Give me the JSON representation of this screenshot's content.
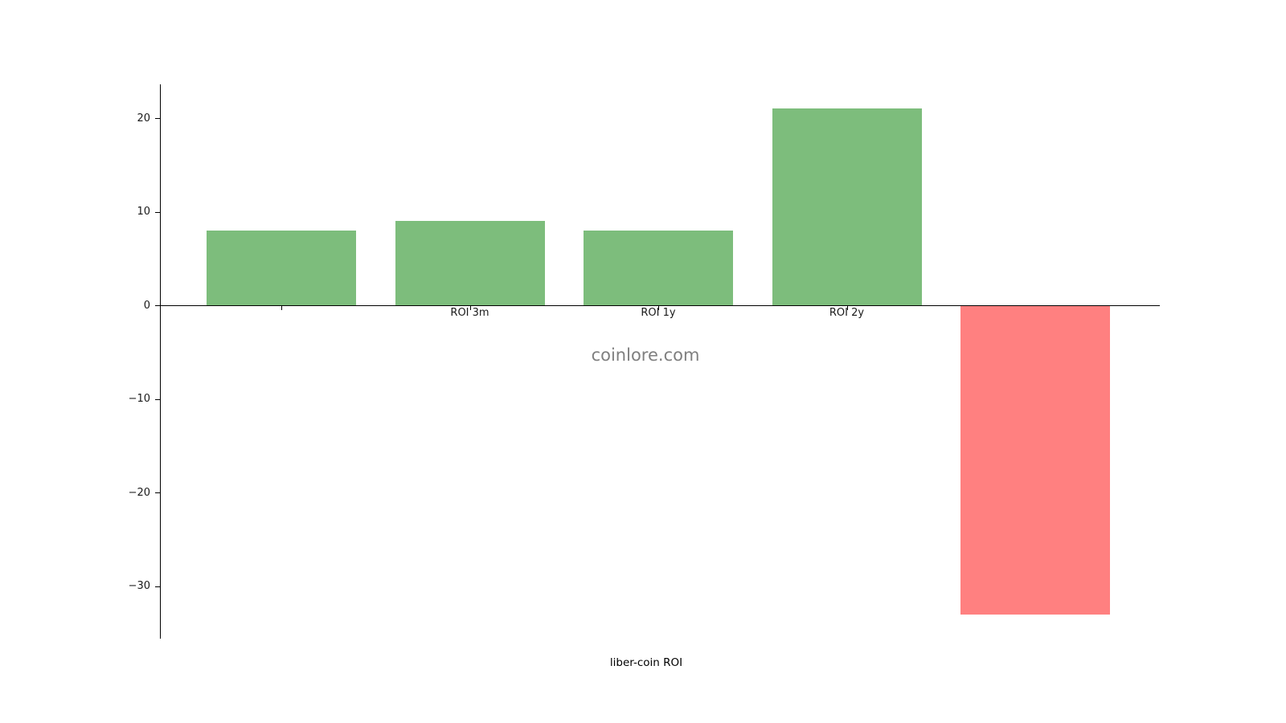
{
  "chart_data": {
    "type": "bar",
    "title": "",
    "xlabel": "liber-coin ROI",
    "ylabel": "",
    "categories": [
      "",
      "ROI 3m",
      "ROI 1y",
      "ROI 2y",
      ""
    ],
    "values": [
      8,
      9,
      8,
      21,
      -33
    ],
    "bar_colors": [
      "#7dbd7c",
      "#7dbd7c",
      "#7dbd7c",
      "#7dbd7c",
      "#ff8080"
    ],
    "positive_color": "#7dbd7c",
    "negative_color": "#ff8080",
    "y_ticks": [
      20,
      10,
      0,
      -10,
      -20,
      -30
    ],
    "y_tick_labels": [
      "20",
      "10",
      "0",
      "−10",
      "−20",
      "−30"
    ],
    "ylim": [
      -34.9,
      23.6
    ],
    "grid": false,
    "legend": false,
    "axis_color": "#000000"
  },
  "watermark": {
    "text": "coinlore.com",
    "color": "#7f7f7f"
  }
}
